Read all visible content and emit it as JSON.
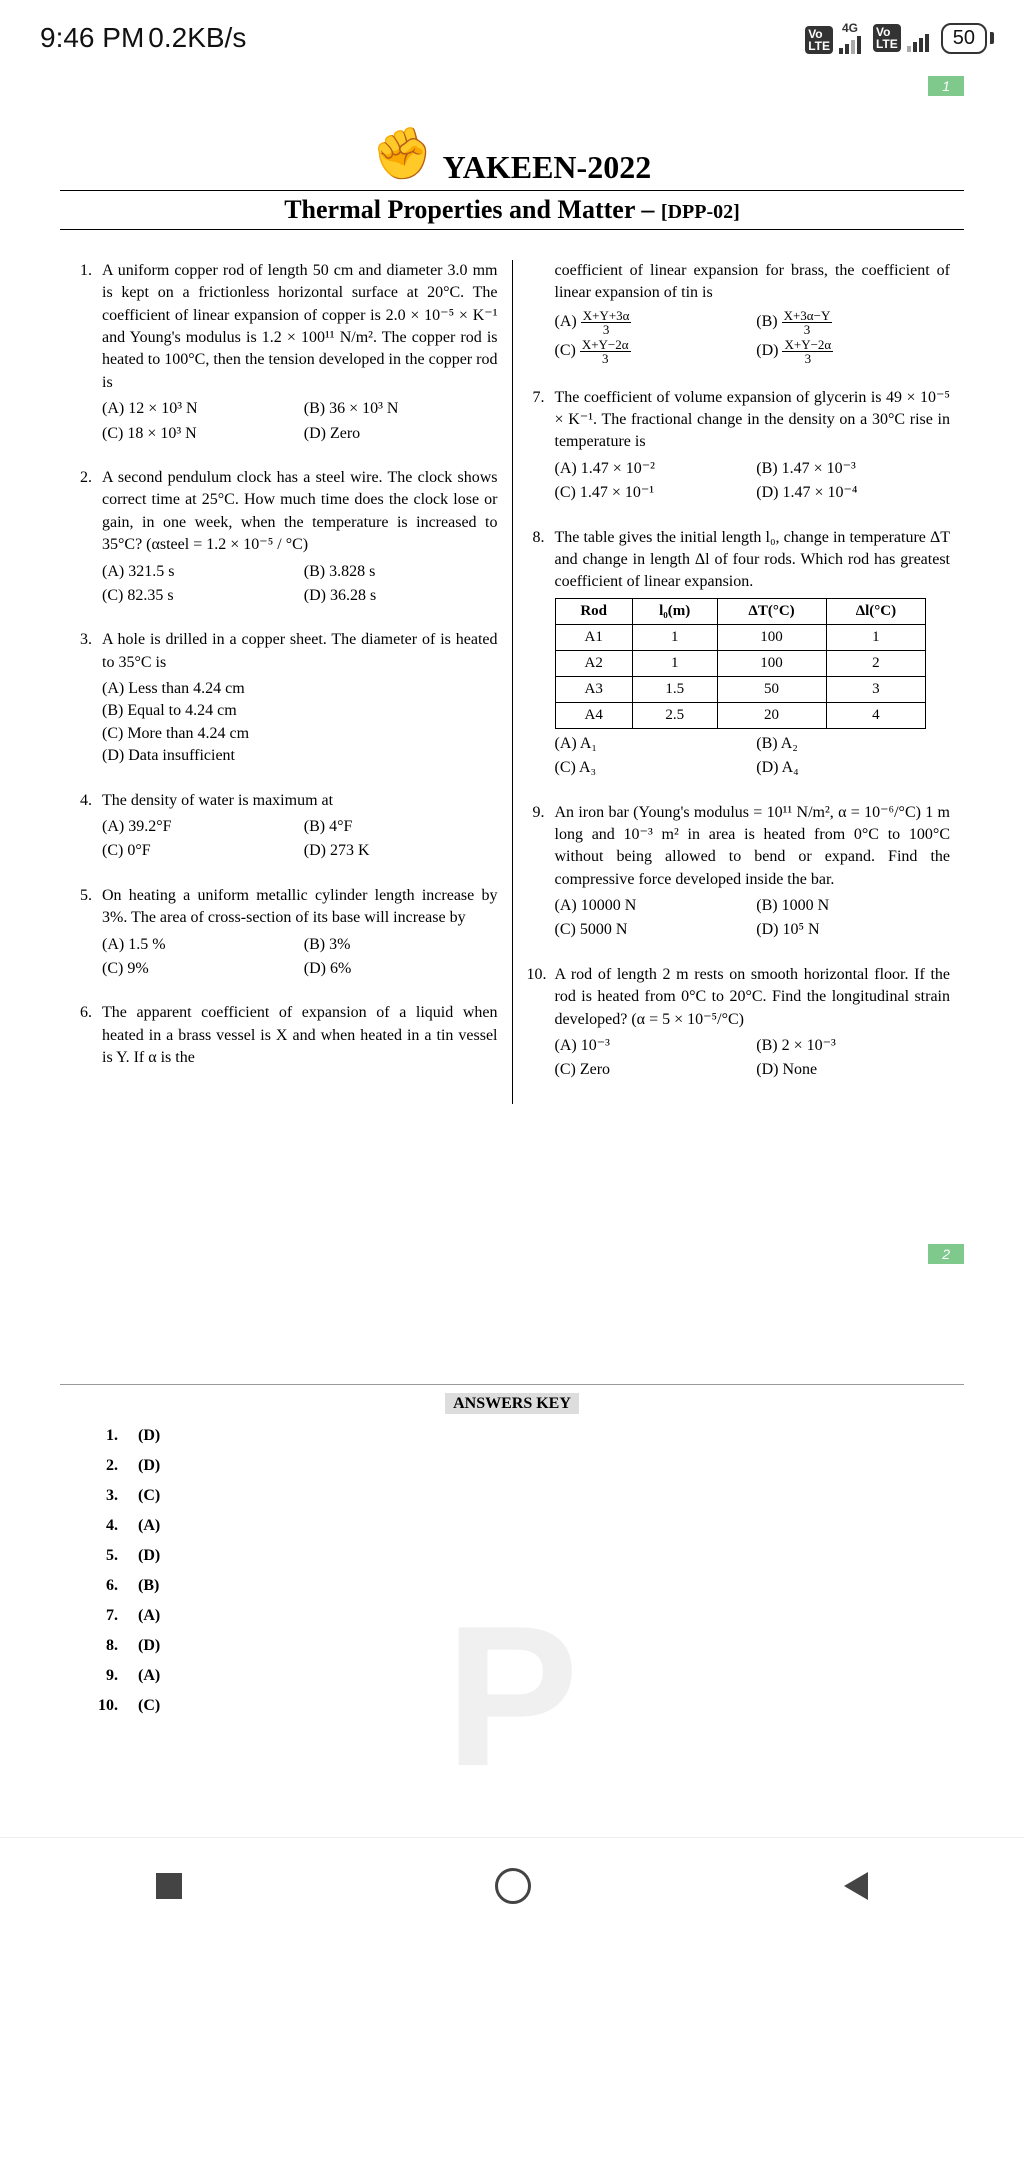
{
  "status": {
    "time": "9:46 PM",
    "kb": "0.2KB/s",
    "fourg": "4G",
    "volte": "Vo\nLTE",
    "battery": "50"
  },
  "pageMarker1": "1",
  "pageMarker2": "2",
  "header": {
    "title": "YAKEEN-2022",
    "subtitle": "Thermal Properties and Matter –",
    "dpp": "[DPP-02]"
  },
  "questions_left": [
    {
      "n": "1.",
      "text": "A uniform copper rod of length 50 cm and diameter 3.0 mm is kept on a frictionless horizontal surface at 20°C. The coefficient of linear expansion of copper is 2.0 × 10⁻⁵ × K⁻¹ and Young's modulus is 1.2 × 100¹¹ N/m². The copper rod is heated to 100°C, then the tension developed in the copper rod is",
      "opts": [
        "(A)  12 × 10³ N",
        "(B)  36 × 10³ N",
        "(C)  18 × 10³ N",
        "(D)  Zero"
      ]
    },
    {
      "n": "2.",
      "text": "A second pendulum clock has a steel wire. The clock shows correct time at 25°C. How much time does the clock lose or gain, in one week, when the temperature is increased to 35°C? (αsteel = 1.2 × 10⁻⁵ / °C)",
      "opts": [
        "(A)  321.5 s",
        "(B)  3.828 s",
        "(C)  82.35 s",
        "(D)  36.28 s"
      ]
    },
    {
      "n": "3.",
      "text": "A hole is drilled in a copper sheet. The diameter of is heated to 35°C is",
      "opts_single": [
        "(A)  Less than 4.24 cm",
        "(B)  Equal to 4.24 cm",
        "(C)  More than 4.24 cm",
        "(D)  Data insufficient"
      ]
    },
    {
      "n": "4.",
      "text": "The density of water is maximum at",
      "opts": [
        "(A)  39.2°F",
        "(B)  4°F",
        "(C)  0°F",
        "(D)  273 K"
      ]
    },
    {
      "n": "5.",
      "text": "On heating a uniform metallic cylinder length increase by 3%. The area of cross-section of its base will increase by",
      "opts": [
        "(A)  1.5 %",
        "(B)  3%",
        "(C)  9%",
        "(D)  6%"
      ]
    },
    {
      "n": "6.",
      "text": "The apparent coefficient of expansion of a liquid when heated in a brass vessel is X and when heated in a tin vessel is Y. If α is the"
    }
  ],
  "q6_cont": "coefficient of linear expansion for brass, the coefficient of linear expansion of tin is",
  "q6_opts": [
    {
      "label": "(A)",
      "num": "X+Y+3α",
      "den": "3"
    },
    {
      "label": "(B)",
      "num": "X+3α−Y",
      "den": "3"
    },
    {
      "label": "(C)",
      "num": "X+Y−2α",
      "den": "3"
    },
    {
      "label": "(D)",
      "num": "X+Y−2α",
      "den": "3"
    }
  ],
  "questions_right": [
    {
      "n": "7.",
      "text": "The coefficient of volume expansion of glycerin is 49 × 10⁻⁵ × K⁻¹. The fractional change in the density on a 30°C rise in temperature is",
      "opts": [
        "(A)  1.47 × 10⁻²",
        "(B)  1.47 × 10⁻³",
        "(C)  1.47 × 10⁻¹",
        "(D)  1.47 × 10⁻⁴"
      ]
    },
    {
      "n": "8.",
      "text": "The table gives the initial length l₀, change in temperature ΔT and change in length Δl of four rods. Which rod has greatest coefficient of linear expansion.",
      "table": {
        "head": [
          "Rod",
          "l₀(m)",
          "ΔT(°C)",
          "Δl(°C)"
        ],
        "rows": [
          [
            "A1",
            "1",
            "100",
            "1"
          ],
          [
            "A2",
            "1",
            "100",
            "2"
          ],
          [
            "A3",
            "1.5",
            "50",
            "3"
          ],
          [
            "A4",
            "2.5",
            "20",
            "4"
          ]
        ]
      },
      "opts": [
        "(A)  A₁",
        "(B)  A₂",
        "(C)  A₃",
        "(D)  A₄"
      ]
    },
    {
      "n": "9.",
      "text": "An iron bar (Young's modulus = 10¹¹ N/m², α = 10⁻⁶/°C) 1 m long and 10⁻³ m² in area is heated from 0°C to 100°C without being allowed to bend or expand. Find the compressive force developed inside the bar.",
      "opts": [
        "(A)  10000 N",
        "(B)  1000 N",
        "(C)  5000 N",
        "(D)  10⁵ N"
      ]
    },
    {
      "n": "10.",
      "text": "A rod of length 2 m rests on smooth horizontal floor. If the rod is heated from 0°C to 20°C. Find the longitudinal strain developed? (α = 5 × 10⁻⁵/°C)",
      "opts": [
        "(A)  10⁻³",
        "(B)  2 × 10⁻³",
        "(C)  Zero",
        "(D)  None"
      ]
    }
  ],
  "answers_title": "ANSWERS KEY",
  "answers": [
    {
      "n": "1.",
      "a": "(D)"
    },
    {
      "n": "2.",
      "a": "(D)"
    },
    {
      "n": "3.",
      "a": "(C)"
    },
    {
      "n": "4.",
      "a": "(A)"
    },
    {
      "n": "5.",
      "a": "(D)"
    },
    {
      "n": "6.",
      "a": "(B)"
    },
    {
      "n": "7.",
      "a": "(A)"
    },
    {
      "n": "8.",
      "a": "(D)"
    },
    {
      "n": "9.",
      "a": "(A)"
    },
    {
      "n": "10.",
      "a": "(C)"
    }
  ]
}
